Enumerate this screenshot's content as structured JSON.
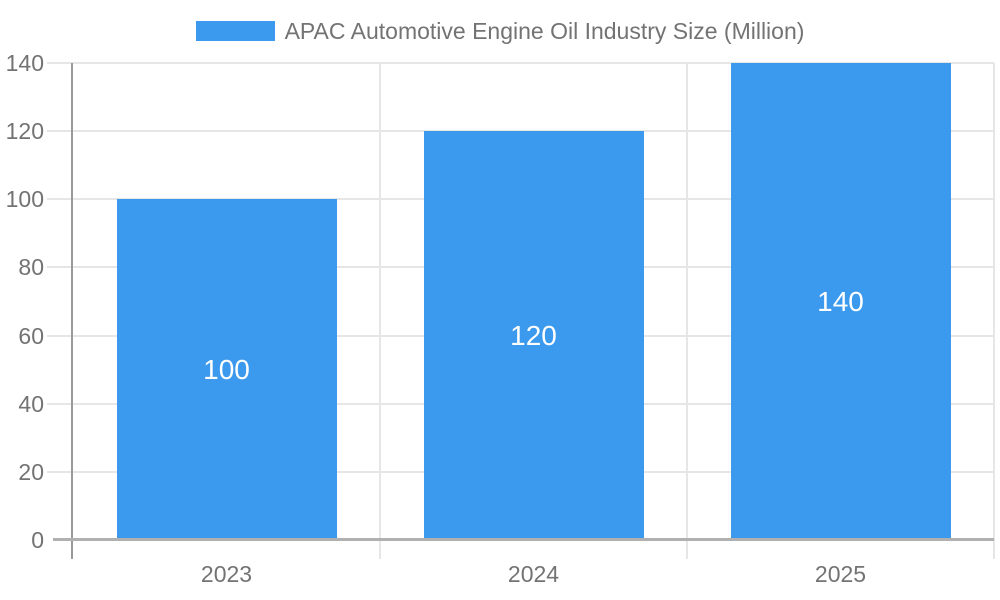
{
  "chart_data": {
    "type": "bar",
    "title": "APAC Automotive Engine Oil Industry Size (Million)",
    "legend": {
      "label": "APAC Automotive Engine Oil Industry Size (Million)",
      "position": "top"
    },
    "categories": [
      "2023",
      "2024",
      "2025"
    ],
    "series": [
      {
        "name": "APAC Automotive Engine Oil Industry Size (Million)",
        "values": [
          100,
          120,
          140
        ]
      }
    ],
    "values": [
      100,
      120,
      140
    ],
    "value_labels_inside_bars": true,
    "xlabel": "",
    "ylabel": "",
    "ylim": [
      0,
      140
    ],
    "yticks": [
      0,
      20,
      40,
      60,
      80,
      100,
      120,
      140
    ],
    "grid": true
  },
  "colors": {
    "bar": "#3B99EE",
    "axis_text": "#737373",
    "legend_text": "#737373",
    "gridline": "#e6e6e6",
    "axis_line": "#999999",
    "baseline": "#b0b0b0",
    "value_label": "#ffffff",
    "background": "#ffffff"
  }
}
